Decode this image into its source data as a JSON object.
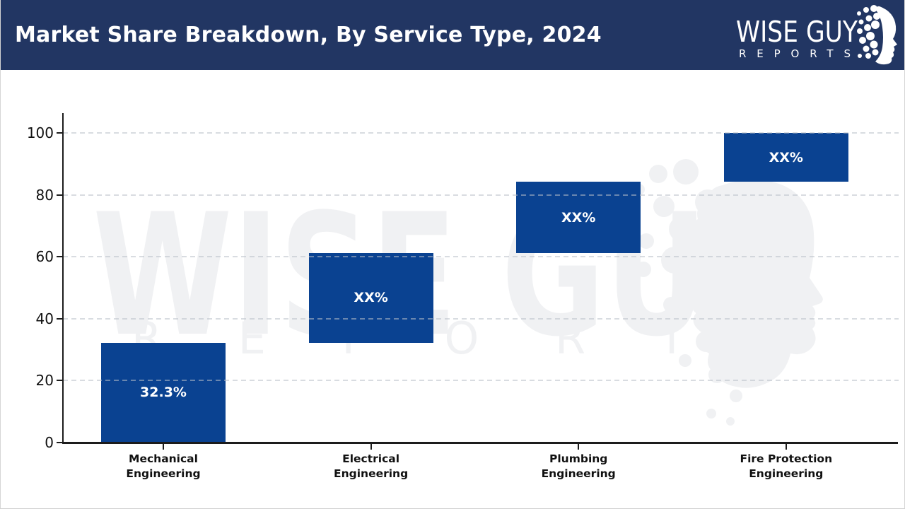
{
  "header": {
    "title": "Market Share Breakdown, By Service Type, 2024",
    "logo": {
      "line1": "WISE GUY",
      "line2": "REPORTS"
    }
  },
  "watermark": {
    "line1": "WISE GUY",
    "line2": "REPORTS"
  },
  "chart_data": {
    "type": "bar",
    "subtype": "waterfall-stacked-market-share",
    "title": "Market Share Breakdown, By Service Type, 2024",
    "categories": [
      "Mechanical Engineering",
      "Electrical Engineering",
      "Plumbing Engineering",
      "Fire Protection Engineering"
    ],
    "category_lines": [
      [
        "Mechanical",
        "Engineering"
      ],
      [
        "Electrical",
        "Engineering"
      ],
      [
        "Plumbing",
        "Engineering"
      ],
      [
        "Fire Protection",
        "Engineering"
      ]
    ],
    "segments": [
      {
        "category": "Mechanical Engineering",
        "label": "32.3%",
        "start": 0,
        "end": 32.3
      },
      {
        "category": "Electrical Engineering",
        "label": "XX%",
        "start": 32.3,
        "end": 61.2
      },
      {
        "category": "Plumbing Engineering",
        "label": "XX%",
        "start": 61.2,
        "end": 84.3
      },
      {
        "category": "Fire Protection Engineering",
        "label": "XX%",
        "start": 84.3,
        "end": 100
      }
    ],
    "yticks": [
      0,
      20,
      40,
      60,
      80,
      100
    ],
    "ylim": [
      0,
      106.5
    ],
    "xlabel": "",
    "ylabel": "",
    "grid": "horizontal-dashed",
    "legend": "none",
    "bar_color": "#0a4291",
    "bar_label_color": "#ffffff"
  },
  "colors": {
    "header_bg": "#223663",
    "bar": "#0a4291",
    "axis": "#1c1c1c",
    "grid": "#d9d9d9",
    "watermark": "#f0f1f3"
  }
}
